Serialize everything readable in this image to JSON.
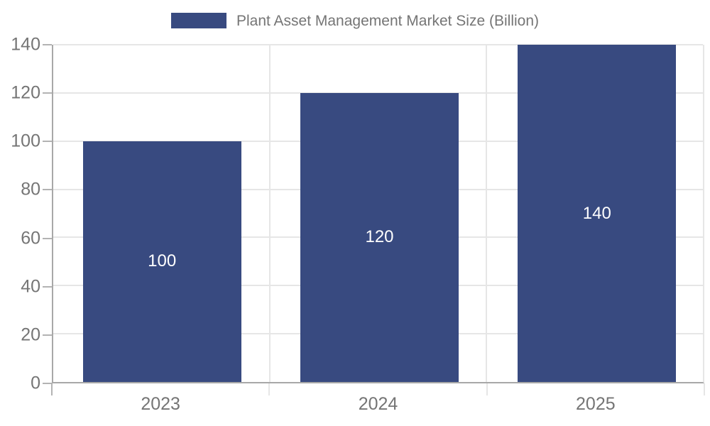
{
  "legend": {
    "label": "Plant Asset Management Market Size (Billion)"
  },
  "chart_data": {
    "type": "bar",
    "title": "",
    "xlabel": "",
    "ylabel": "",
    "categories": [
      "2023",
      "2024",
      "2025"
    ],
    "series": [
      {
        "name": "Plant Asset Management Market Size (Billion)",
        "values": [
          100,
          120,
          140
        ]
      }
    ],
    "values": [
      100,
      120,
      140
    ],
    "bar_value_labels": [
      "100",
      "120",
      "140"
    ],
    "ylim": [
      0,
      140
    ],
    "yticks": [
      0,
      20,
      40,
      60,
      80,
      100,
      120,
      140
    ],
    "grid": true,
    "legend_position": "top-center"
  },
  "colors": {
    "bar": "#384a80",
    "axis": "#a8a8a8",
    "grid": "#e6e6e6",
    "tick": "#b3b3b3",
    "label_text": "#757575",
    "bar_label_text": "#ffffff",
    "background": "#ffffff"
  }
}
